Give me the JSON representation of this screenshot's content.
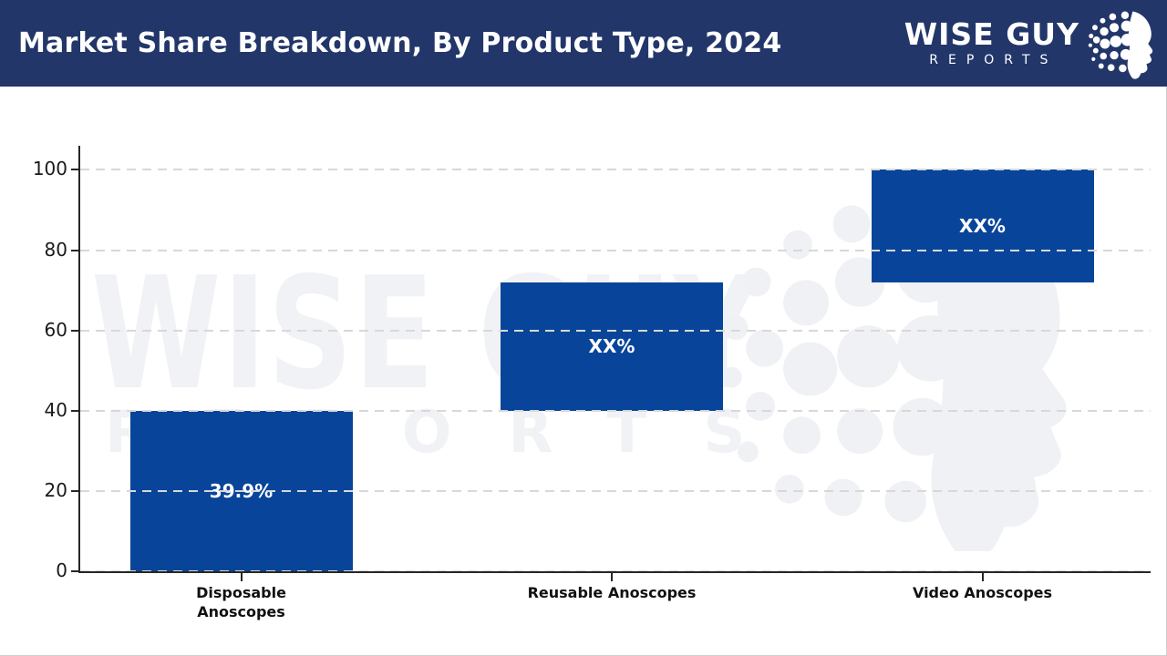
{
  "header": {
    "title": "Market Share Breakdown, By Product Type, 2024",
    "logo": {
      "line1": "WISE GUY",
      "line2": "REPORTS"
    }
  },
  "watermark": {
    "line1": "WISE GUY",
    "line2": "REPORTS"
  },
  "colors": {
    "header_bg": "#22366a",
    "bar_blue": "#08459a",
    "gridline": "#d8d8d8",
    "axis": "#262626",
    "watermark": "#f1f2f5"
  },
  "chart_data": {
    "type": "bar",
    "subtype": "waterfall",
    "title": "Market Share Breakdown, By Product Type, 2024",
    "categories": [
      "Disposable\nAnoscopes",
      "Reusable Anoscopes",
      "Video Anoscopes"
    ],
    "bars": [
      {
        "category": "Disposable Anoscopes",
        "start": 0,
        "end": 39.9,
        "label": "39.9%"
      },
      {
        "category": "Reusable Anoscopes",
        "start": 39.9,
        "end": 72,
        "label": "XX%"
      },
      {
        "category": "Video Anoscopes",
        "start": 72,
        "end": 100,
        "label": "XX%"
      }
    ],
    "yticks": [
      0,
      20,
      40,
      60,
      80,
      100
    ],
    "ylim": [
      0,
      106
    ],
    "xlabel": "",
    "ylabel": "",
    "grid": true,
    "gridline_style": "dashed",
    "legend": null,
    "bar_color": "#08459a",
    "value_label_color": "#ffffff"
  }
}
